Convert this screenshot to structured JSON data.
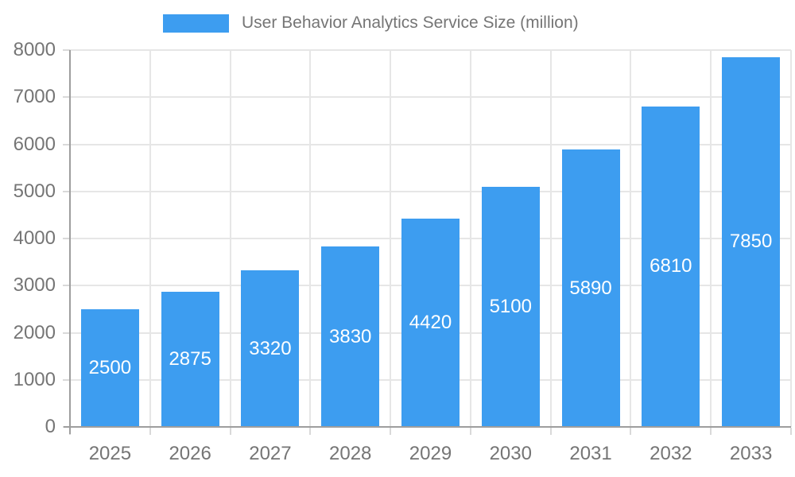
{
  "chart_data": {
    "type": "bar",
    "title": "User Behavior Analytics Service Size (million)",
    "categories": [
      "2025",
      "2026",
      "2027",
      "2028",
      "2029",
      "2030",
      "2031",
      "2032",
      "2033"
    ],
    "values": [
      2500,
      2875,
      3320,
      3830,
      4420,
      5100,
      5890,
      6810,
      7850
    ],
    "xlabel": "",
    "ylabel": "",
    "ylim": [
      0,
      8000
    ],
    "ytick_step": 1000,
    "yticks": [
      "0",
      "1000",
      "2000",
      "3000",
      "4000",
      "5000",
      "6000",
      "7000",
      "8000"
    ],
    "grid": true,
    "legend_position": "top",
    "colors": {
      "bar": "#3d9df0",
      "bar_label": "#ffffff",
      "axis_text": "#757575",
      "axis_line": "#9e9e9e",
      "gridline": "#e6e6e6",
      "tick": "#d9d9d9",
      "background": "#ffffff"
    }
  }
}
